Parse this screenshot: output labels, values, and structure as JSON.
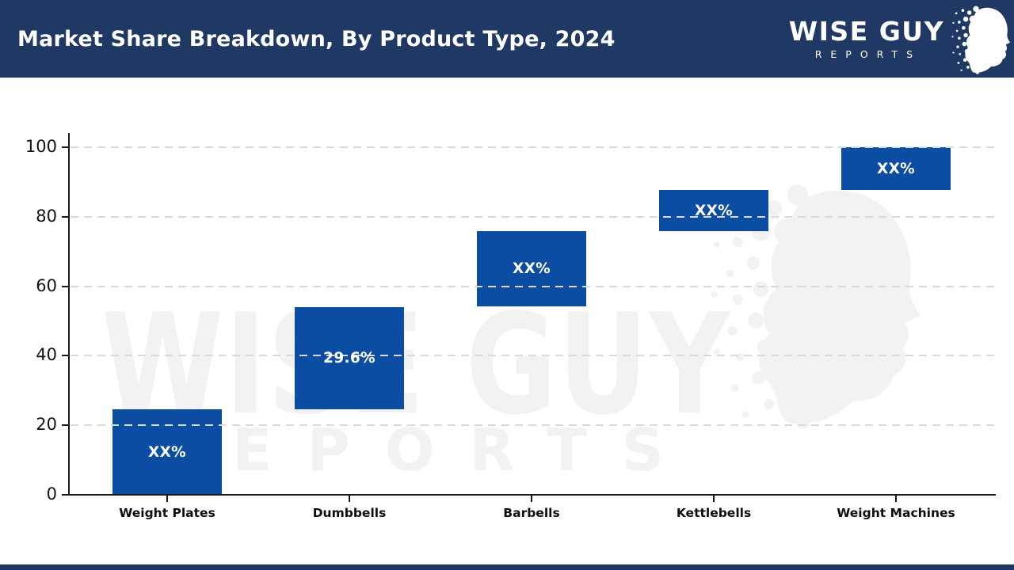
{
  "header": {
    "title": "Market Share Breakdown, By Product Type, 2024",
    "logo": {
      "line1": "WISE GUY",
      "line2": "REPORTS"
    }
  },
  "watermark": {
    "line1": "WISE GUY",
    "line2": "REPORTS"
  },
  "colors": {
    "header_bg": "#1f3864",
    "footer_bg": "#1f3864",
    "background": "#ffffff",
    "title_text": "#ffffff",
    "bar": "#0b4da2",
    "bar_label": "#ffffff",
    "grid": "#d9d9d9",
    "axis": "#1a1a1a",
    "watermark": "#f2f2f2"
  },
  "chart_data": {
    "type": "bar",
    "subtype": "stacked-waterfall",
    "title": "Market Share Breakdown, By Product Type, 2024",
    "xlabel": "",
    "ylabel": "",
    "categories": [
      "Weight Plates",
      "Dumbbells",
      "Barbells",
      "Kettlebells",
      "Weight Machines"
    ],
    "segments": [
      {
        "category": "Weight Plates",
        "start": 0,
        "end": 24.5,
        "label": "XX%"
      },
      {
        "category": "Dumbbells",
        "start": 24.5,
        "end": 54.1,
        "label": "29.6%",
        "value": 29.6
      },
      {
        "category": "Barbells",
        "start": 54.1,
        "end": 75.9,
        "label": "XX%"
      },
      {
        "category": "Kettlebells",
        "start": 75.9,
        "end": 87.6,
        "label": "XX%"
      },
      {
        "category": "Weight Machines",
        "start": 87.6,
        "end": 100,
        "label": "XX%"
      }
    ],
    "ylim": [
      0,
      100
    ],
    "yticks": [
      0,
      20,
      40,
      60,
      80,
      100
    ],
    "grid": "horizontal-dashed-over-bars",
    "legend": "none"
  }
}
